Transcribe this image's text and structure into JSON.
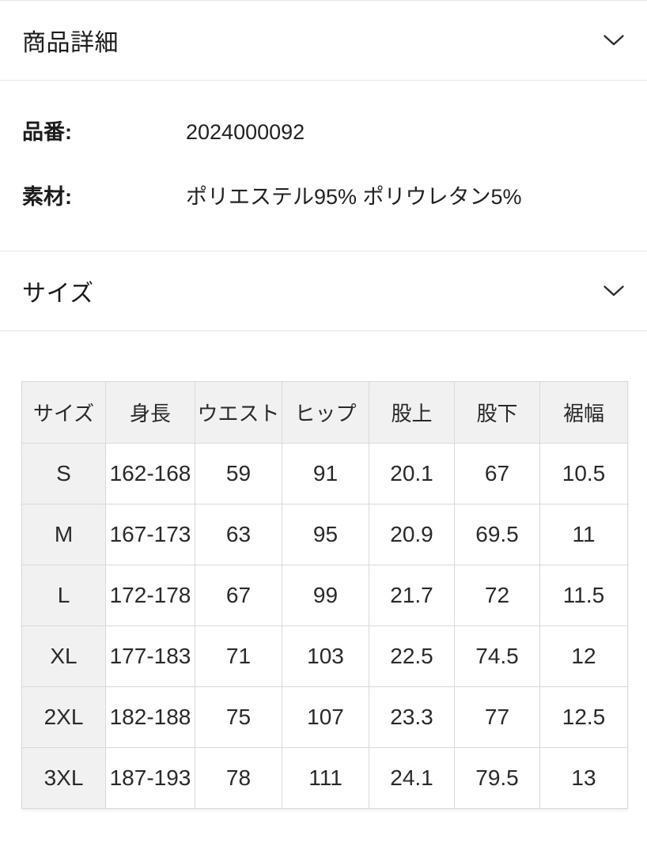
{
  "colors": {
    "background": "#ffffff",
    "divider": "#e3e3e3",
    "table_border": "#d9d9d9",
    "table_header_bg": "#f1f1f1",
    "text": "#1e1e1e"
  },
  "icons": {
    "section_chevron": "chevron-down"
  },
  "product_details_section": {
    "title": "商品詳細"
  },
  "product_info": {
    "rows": [
      {
        "label": "品番:",
        "value": "2024000092"
      },
      {
        "label": "素材:",
        "value": "ポリエステル95% ポリウレタン5%"
      }
    ]
  },
  "size_section": {
    "title": "サイズ"
  },
  "size_table": {
    "headers": [
      "サイズ",
      "身長",
      "ウエスト",
      "ヒップ",
      "股上",
      "股下",
      "裾幅"
    ],
    "rows": [
      [
        "S",
        "162-168",
        "59",
        "91",
        "20.1",
        "67",
        "10.5"
      ],
      [
        "M",
        "167-173",
        "63",
        "95",
        "20.9",
        "69.5",
        "11"
      ],
      [
        "L",
        "172-178",
        "67",
        "99",
        "21.7",
        "72",
        "11.5"
      ],
      [
        "XL",
        "177-183",
        "71",
        "103",
        "22.5",
        "74.5",
        "12"
      ],
      [
        "2XL",
        "182-188",
        "75",
        "107",
        "23.3",
        "77",
        "12.5"
      ],
      [
        "3XL",
        "187-193",
        "78",
        "111",
        "24.1",
        "79.5",
        "13"
      ]
    ]
  }
}
